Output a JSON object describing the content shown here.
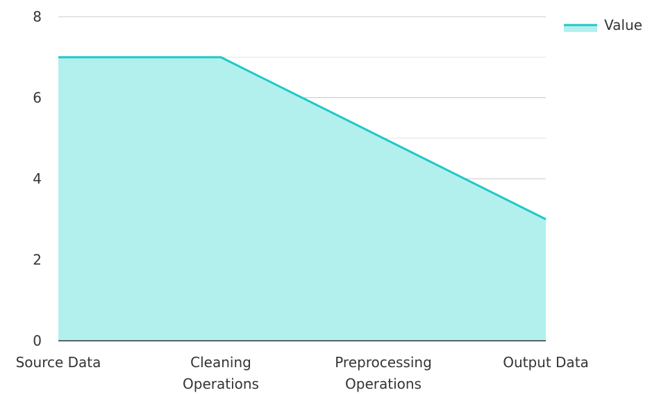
{
  "chart_data": {
    "type": "area",
    "title": "",
    "xlabel": "",
    "ylabel": "",
    "categories": [
      [
        "Source Data"
      ],
      [
        "Cleaning",
        "Operations"
      ],
      [
        "Preprocessing",
        "Operations"
      ],
      [
        "Output Data"
      ]
    ],
    "series": [
      {
        "name": "Value",
        "values": [
          7,
          7,
          5,
          3
        ],
        "line_color": "#1fc8c8",
        "fill_color": "#b2f0ee"
      }
    ],
    "ylim": [
      0,
      8
    ],
    "yticks": [
      0,
      2,
      4,
      6,
      8
    ],
    "grid": true,
    "legend": "top-right"
  }
}
